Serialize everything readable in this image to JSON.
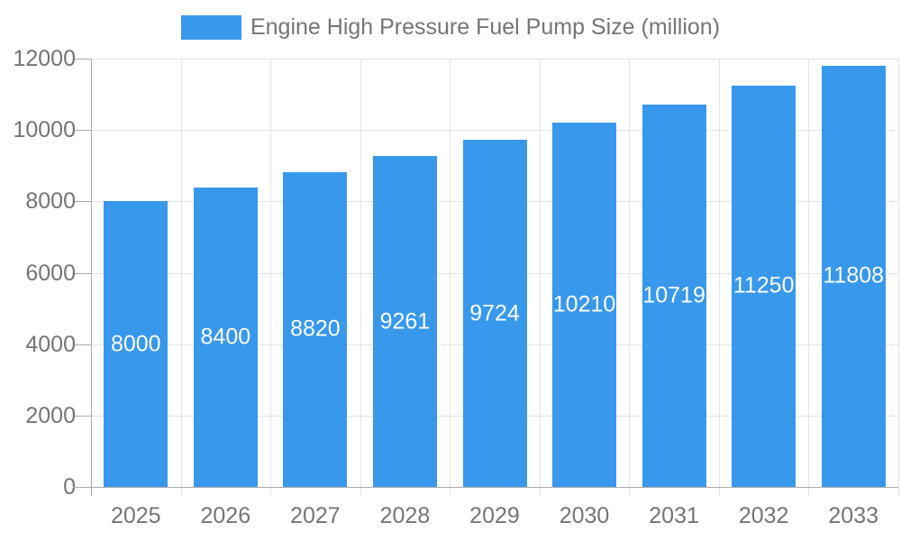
{
  "legend": {
    "label": "Engine High Pressure Fuel Pump Size (million)"
  },
  "chart_data": {
    "type": "bar",
    "title": "Engine High Pressure Fuel Pump Size (million)",
    "categories": [
      "2025",
      "2026",
      "2027",
      "2028",
      "2029",
      "2030",
      "2031",
      "2032",
      "2033"
    ],
    "series": [
      {
        "name": "Engine High Pressure Fuel Pump Size (million)",
        "values": [
          8000,
          8400,
          8820,
          9261,
          9724,
          10210,
          10719,
          11250,
          11808
        ]
      }
    ],
    "value_labels": [
      8000,
      8400,
      8820,
      9261,
      9724,
      10210,
      10719,
      11250,
      11808
    ],
    "value_label_position": "inside-middle",
    "xlabel": "",
    "ylabel": "",
    "ylim": [
      0,
      12000
    ],
    "y_ticks": [
      0,
      2000,
      4000,
      6000,
      8000,
      10000,
      12000
    ],
    "grid": true,
    "legend_position": "top",
    "colors": {
      "bar": "#3898EC",
      "bar_label_text": "#ffffff",
      "tick_text": "#757575",
      "gridline": "#e4e4e4",
      "axis_line": "#ababab"
    }
  }
}
